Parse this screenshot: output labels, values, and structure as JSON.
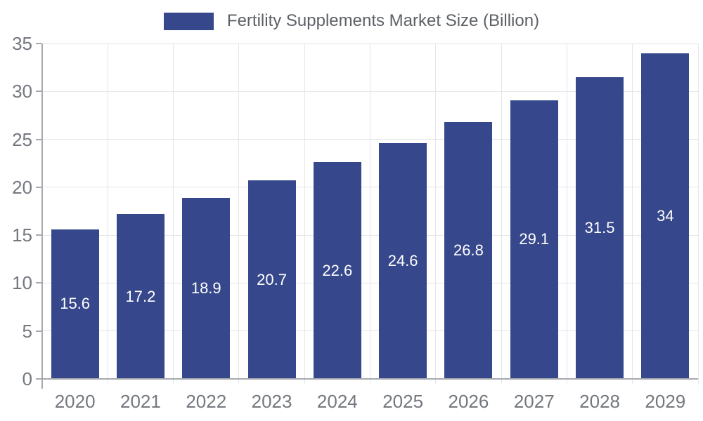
{
  "legend": {
    "label": "Fertility Supplements Market Size (Billion)"
  },
  "chart_data": {
    "type": "bar",
    "title": "",
    "xlabel": "",
    "ylabel": "",
    "categories": [
      "2020",
      "2021",
      "2022",
      "2023",
      "2024",
      "2025",
      "2026",
      "2027",
      "2028",
      "2029"
    ],
    "values": [
      15.6,
      17.2,
      18.9,
      20.7,
      22.6,
      24.6,
      26.8,
      29.1,
      31.5,
      34
    ],
    "series_name": "Fertility Supplements Market Size (Billion)",
    "ylim": [
      0,
      35
    ],
    "yticks": [
      0,
      5,
      10,
      15,
      20,
      25,
      30,
      35
    ],
    "grid": true,
    "vertical_gridlines": true,
    "legend_position": "top-center",
    "value_label_position": "inside-center",
    "colors": {
      "bar": "#36488B",
      "value_label": "#FFFFFF",
      "grid": "#E4E5E9",
      "axis_line": "#A6A9B0",
      "tick": "#A6A9B0",
      "tick_label": "#74787E",
      "legend_text": "#5D6166",
      "background": "#FFFFFF"
    }
  }
}
